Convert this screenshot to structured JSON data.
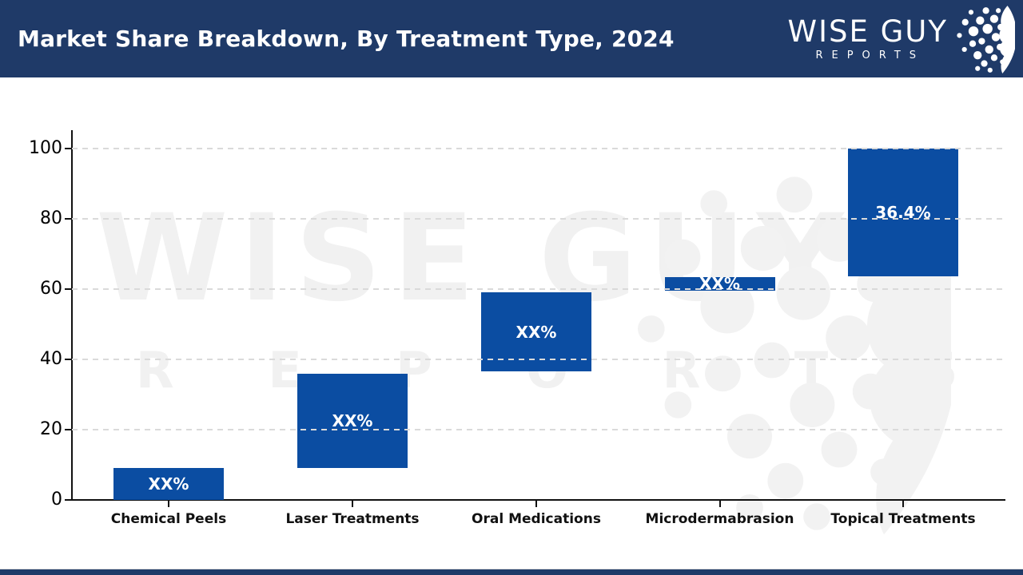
{
  "header": {
    "title": "Market Share Breakdown, By Treatment Type, 2024",
    "bg_color": "#1f3a68",
    "logo": {
      "line1": "WISE GUY",
      "line2": "REPORTS",
      "face_icon": "dotted-face-profile"
    }
  },
  "watermark": {
    "line1": "WISE GUY",
    "line2": "R E P O R T S",
    "face_icon": "dotted-face-profile",
    "color": "#f1f1f1"
  },
  "chart_data": {
    "type": "bar",
    "subtype": "waterfall",
    "title": "",
    "xlabel": "",
    "ylabel": "",
    "categories": [
      "Chemical Peels",
      "Laser Treatments",
      "Oral Medications",
      "Microdermabrasion",
      "Topical Treatments"
    ],
    "series": [
      {
        "name": "Market Share",
        "segments": [
          {
            "category": "Chemical Peels",
            "start": 0,
            "end": 9,
            "label": "XX%"
          },
          {
            "category": "Laser Treatments",
            "start": 9,
            "end": 36,
            "label": "XX%"
          },
          {
            "category": "Oral Medications",
            "start": 36.5,
            "end": 59,
            "label": "XX%"
          },
          {
            "category": "Microdermabrasion",
            "start": 59.5,
            "end": 63.5,
            "label": "XX%"
          },
          {
            "category": "Topical Treatments",
            "start": 63.6,
            "end": 100,
            "label": "36.4%"
          }
        ]
      }
    ],
    "yticks": [
      0,
      20,
      40,
      60,
      80,
      100
    ],
    "ylim": [
      0,
      105
    ],
    "grid": "horizontal-dashed",
    "grid_color": "#dadada",
    "bar_color": "#0b4da2",
    "bar_label_color": "#ffffff",
    "legend": "none"
  },
  "footer": {
    "bar_color": "#1f3a68"
  }
}
